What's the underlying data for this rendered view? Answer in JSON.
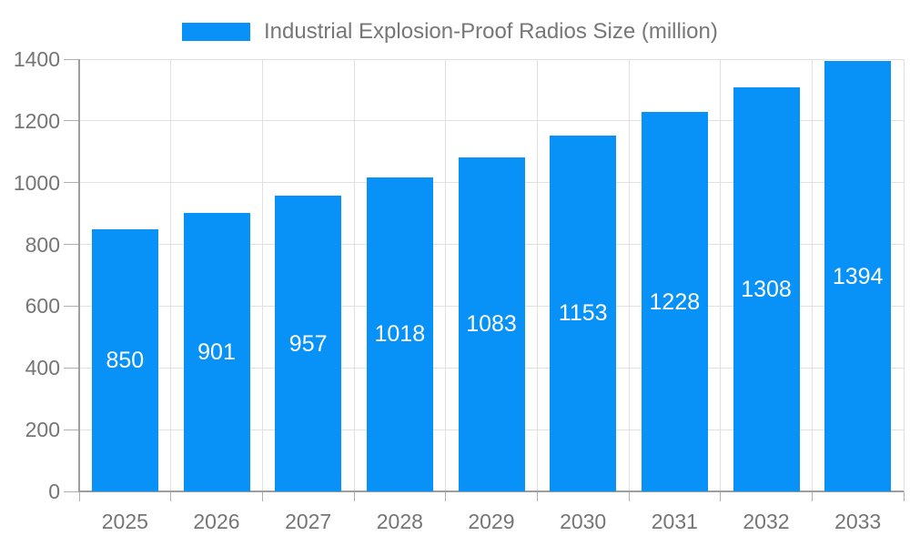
{
  "chart_data": {
    "type": "bar",
    "title": "Industrial Explosion-Proof Radios Size (million)",
    "legend": [
      "Industrial Explosion-Proof Radios Size (million)"
    ],
    "legend_position": "top",
    "categories": [
      "2025",
      "2026",
      "2027",
      "2028",
      "2029",
      "2030",
      "2031",
      "2032",
      "2033"
    ],
    "values": [
      850,
      901,
      957,
      1018,
      1083,
      1153,
      1228,
      1308,
      1394
    ],
    "value_labels_visible": true,
    "xlabel": "",
    "ylabel": "",
    "ylim": [
      0,
      1400
    ],
    "yticks": [
      0,
      200,
      400,
      600,
      800,
      1000,
      1200,
      1400
    ],
    "grid": true
  },
  "colors": {
    "bar": "#0892f8",
    "grid": "#e0e0e0",
    "axis": "#9e9e9e",
    "tick": "#b0b0b0",
    "tick_label": "#757575",
    "legend_text": "#777777",
    "bar_label": "#ffffff",
    "background": "#ffffff"
  }
}
